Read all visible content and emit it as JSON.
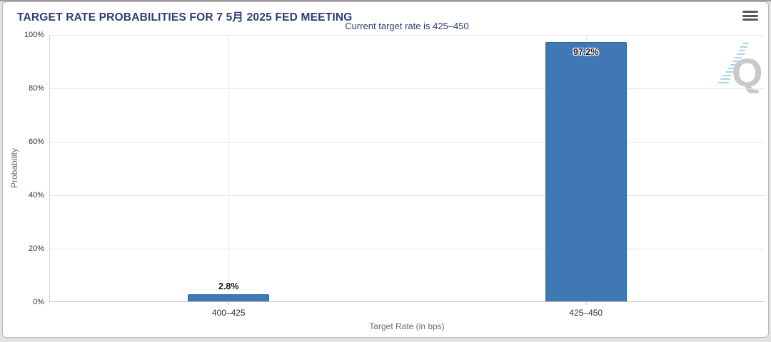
{
  "header": {
    "menu_icon": "hamburger-icon"
  },
  "chart_data": {
    "type": "bar",
    "title": "TARGET RATE PROBABILITIES FOR 7 5月 2025 FED MEETING",
    "subtitle": "Current target rate is 425–450",
    "categories": [
      "400–425",
      "425–450"
    ],
    "values": [
      2.8,
      97.2
    ],
    "data_labels": [
      "2.8%",
      "97.2%"
    ],
    "xlabel": "Target Rate (in bps)",
    "ylabel": "Probability",
    "ylim": [
      0,
      100
    ],
    "ytick_interval": 20,
    "yticks_top_to_bottom": [
      "100%",
      "80%",
      "60%",
      "40%",
      "20%",
      "0%"
    ],
    "grid": true,
    "legend": "none",
    "bar_color": "#4078b4",
    "bar_border_color": "#2a679e",
    "title_color": "#2e4070"
  },
  "watermark": {
    "letter": "Q"
  }
}
